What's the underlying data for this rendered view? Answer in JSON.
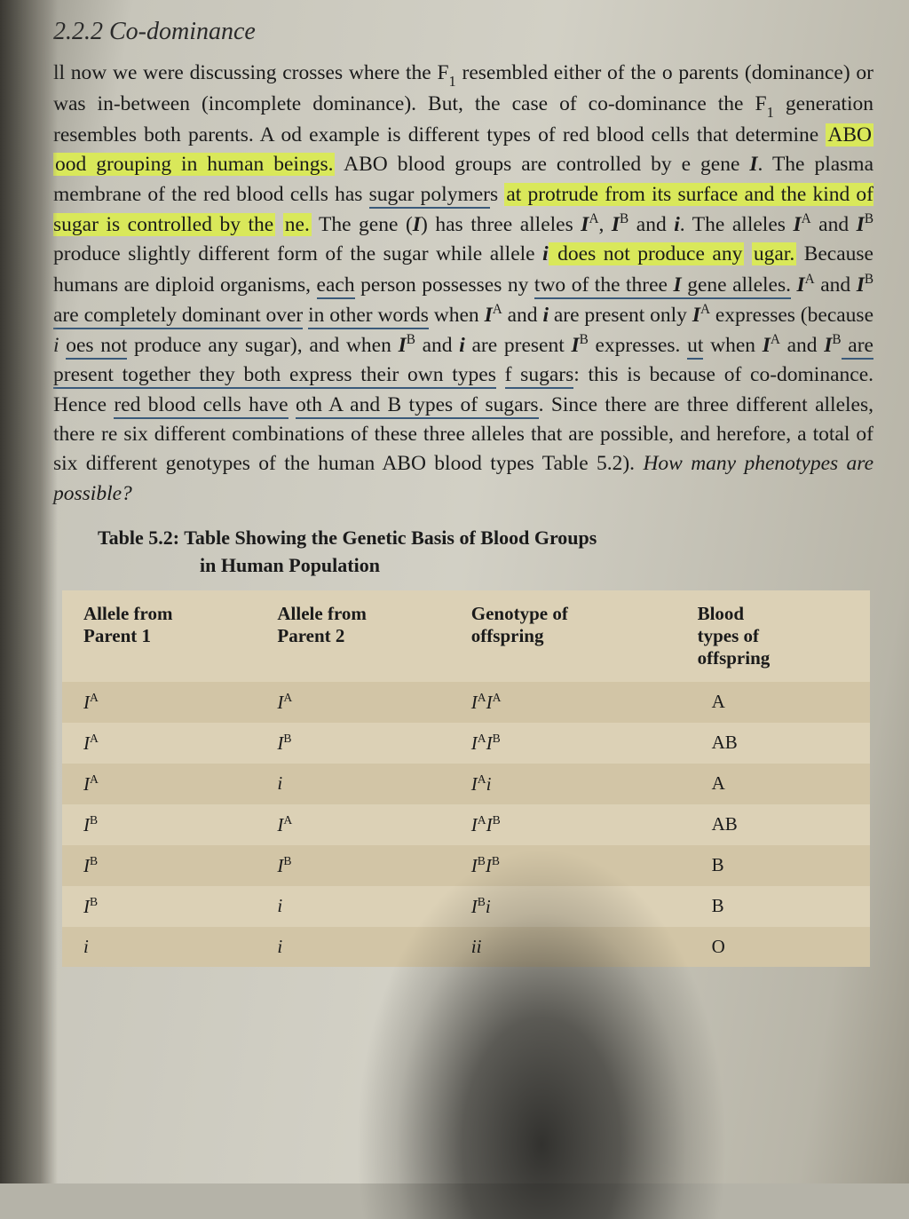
{
  "section": {
    "number": "2.2.2",
    "title": "Co-dominance"
  },
  "paragraph": {
    "line1a": "ll now we were discussing crosses where the F",
    "line1b": " resembled either of the",
    "line2": "o parents (dominance) or was in-between (incomplete dominance). But,",
    "line3a": "the case of co-dominance the F",
    "line3b": " generation resembles both parents. A",
    "line4a": "od example is different types of red blood cells that determine ",
    "line4b_hl": "ABO",
    "line5a_hl": "ood grouping in human beings.",
    "line5b": " ABO blood groups are controlled by",
    "line6a": "e gene ",
    "line6b": "I",
    "line6c": ". The plasma membrane of the red blood cells has ",
    "line6d_ul": "sugar polymer",
    "line6e": "s",
    "line7a_hl": "at protrude from its surface and the kind of sugar is controlled by the",
    "line8a_hl": "ne.",
    "line8b": " The gene (",
    "line8c": "I",
    "line8d": ") has three alleles ",
    "line8e": "I",
    "line8f": ", ",
    "line8g": "I",
    "line8h": " and ",
    "line8i": "i",
    "line8j": ". The alleles ",
    "line8k": "I",
    "line8l": " and ",
    "line8m": "I",
    "line8n": " produce",
    "line9a": "slightly different form of the sugar while allele ",
    "line9b": "i",
    "line9c_hl": " does not produce any",
    "line10a_hl": "ugar.",
    "line10b": " Because humans are diploid organisms, ",
    "line10c_ul": "each",
    "line10d": " person possesses",
    "line11a": "ny ",
    "line11b_ul": "two of the three ",
    "line11c_ul": "I",
    "line11d_ul": " gene alleles.",
    "line11e": " ",
    "line11f": "I",
    "line11g": " and ",
    "line11h": "I",
    "line11i_ul": " are completely dominant over",
    "line12a_ul": "in other words",
    "line12b": " when ",
    "line12c": "I",
    "line12d": " and ",
    "line12e": "i",
    "line12f": " are present only ",
    "line12g": "I",
    "line12h": " expresses (because ",
    "line12i": "i",
    "line13a_ul": "oes not",
    "line13b": " produce any sugar), and when ",
    "line13c": "I",
    "line13d": " and ",
    "line13e": "i",
    "line13f": " are present ",
    "line13g": "I",
    "line13h": " expresses.",
    "line14a_ul": "ut",
    "line14b": " when ",
    "line14c": "I",
    "line14d": " and ",
    "line14e": "I",
    "line14f_ul": " are present together they both express their own types",
    "line15a_ul": "f sugars",
    "line15b": ": this is because of co-dominance. Hence ",
    "line15c_ul": "red blood cells have",
    "line16a_ul": "oth A and B types of sugars",
    "line16b": ". Since there are three different alleles, there",
    "line17": "re six different combinations of these three alleles that are possible, and",
    "line18": "herefore, a total of six different genotypes of the human ABO blood types",
    "line19a": "Table 5.2). ",
    "line19b": "How many phenotypes are possible?"
  },
  "table": {
    "caption_a": "Table 5.2: Table Showing the Genetic Basis of Blood Groups",
    "caption_b": "in Human Population",
    "headers": {
      "c1a": "Allele from",
      "c1b": "Parent 1",
      "c2a": "Allele from",
      "c2b": "Parent 2",
      "c3a": "Genotype of",
      "c3b": "offspring",
      "c4a": "Blood",
      "c4b": "types of",
      "c4c": "offspring"
    },
    "rows": [
      {
        "p1_base": "I",
        "p1_sup": "A",
        "p2_base": "I",
        "p2_sup": "A",
        "g_b1": "I",
        "g_s1": "A",
        "g_b2": "I",
        "g_s2": "A",
        "bt": "A"
      },
      {
        "p1_base": "I",
        "p1_sup": "A",
        "p2_base": "I",
        "p2_sup": "B",
        "g_b1": "I",
        "g_s1": "A",
        "g_b2": "I",
        "g_s2": "B",
        "bt": "AB"
      },
      {
        "p1_base": "I",
        "p1_sup": "A",
        "p2_base": "i",
        "p2_sup": "",
        "g_b1": "I",
        "g_s1": "A",
        "g_b2": "i",
        "g_s2": "",
        "bt": "A"
      },
      {
        "p1_base": "I",
        "p1_sup": "B",
        "p2_base": "I",
        "p2_sup": "A",
        "g_b1": "I",
        "g_s1": "A",
        "g_b2": "I",
        "g_s2": "B",
        "bt": "AB"
      },
      {
        "p1_base": "I",
        "p1_sup": "B",
        "p2_base": "I",
        "p2_sup": "B",
        "g_b1": "I",
        "g_s1": "B",
        "g_b2": "I",
        "g_s2": "B",
        "bt": "B"
      },
      {
        "p1_base": "I",
        "p1_sup": "B",
        "p2_base": "i",
        "p2_sup": "",
        "g_b1": "I",
        "g_s1": "B",
        "g_b2": "i",
        "g_s2": "",
        "bt": "B"
      },
      {
        "p1_base": "i",
        "p1_sup": "",
        "p2_base": "i",
        "p2_sup": "",
        "g_b1": "i",
        "g_s1": "",
        "g_b2": "i",
        "g_s2": "",
        "bt": "O"
      }
    ]
  },
  "colors": {
    "highlight": "#d9e85a",
    "underline": "#3a5a7a",
    "page_bg": "#c7c5ba",
    "table_row_odd": "#d2c5a6",
    "table_row_even": "#dcd1b6",
    "text": "#1a1a1a"
  }
}
